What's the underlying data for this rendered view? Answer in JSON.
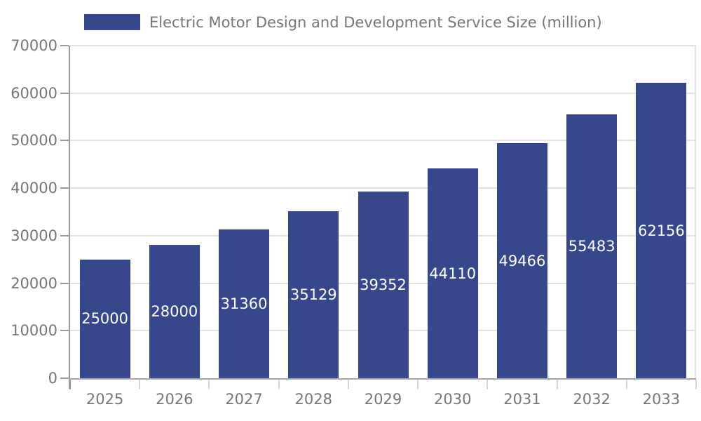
{
  "legend": {
    "label": "Electric Motor Design and Development Service Size (million)",
    "swatch_color": "#36478B"
  },
  "chart_data": {
    "type": "bar",
    "title": "Electric Motor Design and Development Service Size (million)",
    "series_name": "Electric Motor Design and Development Service Size (million)",
    "categories": [
      "2025",
      "2026",
      "2027",
      "2028",
      "2029",
      "2030",
      "2031",
      "2032",
      "2033"
    ],
    "values": [
      25000,
      28000,
      31360,
      35129,
      39352,
      44110,
      49466,
      55483,
      62156
    ],
    "value_labels": [
      "25000",
      "28000",
      "31360",
      "35129",
      "39352",
      "44110",
      "49466",
      "55483",
      "62156"
    ],
    "xlabel": "",
    "ylabel": "",
    "ylim": [
      0,
      70000
    ],
    "ytick_step": 10000,
    "ytick_labels": [
      "0",
      "10000",
      "20000",
      "30000",
      "40000",
      "50000",
      "60000",
      "70000"
    ],
    "grid": true,
    "legend_position": "top-left",
    "bar_color": "#36478B",
    "value_label_color": "#FFFFFF",
    "tick_label_color": "#757575",
    "gridline_color": "#E2E2E2",
    "axis_color": "#999999",
    "background_color": "#FFFFFF"
  }
}
